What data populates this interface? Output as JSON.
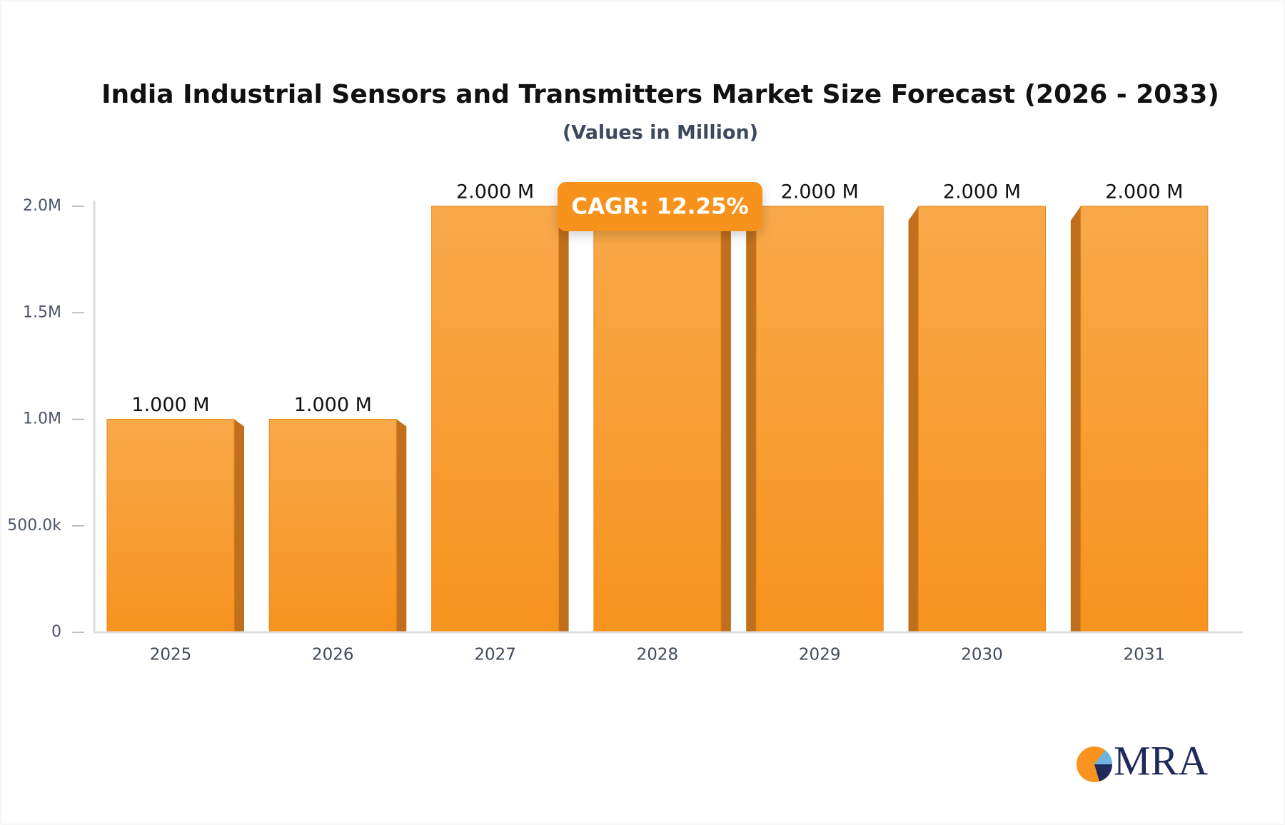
{
  "chart_data": {
    "type": "bar",
    "title": "India Industrial Sensors and Transmitters Market Size Forecast (2026 - 2033)",
    "subtitle": "(Values in Million)",
    "categories": [
      "2025",
      "2026",
      "2027",
      "2028",
      "2029",
      "2030",
      "2031"
    ],
    "values": [
      1000000,
      1000000,
      2000000,
      2000000,
      2000000,
      2000000,
      2000000
    ],
    "value_labels": [
      "1.000 M",
      "1.000 M",
      "2.000 M",
      null,
      "2.000 M",
      "2.000 M",
      "2.000 M"
    ],
    "color": "#f7931e",
    "ylim": [
      0,
      2000000
    ],
    "yticks": [
      0,
      {
        "value": 500000,
        "label": "500.0k"
      },
      {
        "value": 1000000,
        "label": "1.0M"
      },
      {
        "value": 1500000,
        "label": "1.5M"
      },
      {
        "value": 2000000,
        "label": "2.0M"
      }
    ],
    "annotation": "CAGR: 12.25%",
    "logo_text": "MRA"
  }
}
